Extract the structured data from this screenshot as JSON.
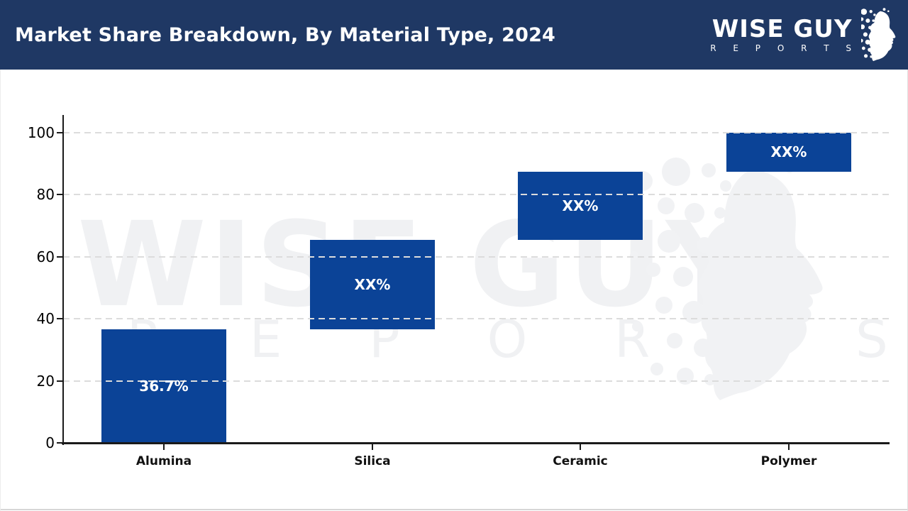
{
  "header": {
    "title": "Market Share Breakdown, By Material Type, 2024",
    "bg_color": "#1f3864",
    "logo": {
      "wordmark": "WISE GUY",
      "subtext": "R E P O R T S"
    }
  },
  "watermark": {
    "line1": "WISE GUY",
    "line2": "R E P O R T S"
  },
  "chart_data": {
    "type": "bar",
    "subtype": "floating-waterfall",
    "title": "Market Share Breakdown, By Material Type, 2024",
    "categories": [
      "Alumina",
      "Silica",
      "Ceramic",
      "Polymer"
    ],
    "series": [
      {
        "name": "Market share (%)",
        "ranges": [
          [
            0,
            36.7
          ],
          [
            36.7,
            65.4
          ],
          [
            65.4,
            87.5
          ],
          [
            87.5,
            100
          ]
        ],
        "labels": [
          "36.7%",
          "XX%",
          "XX%",
          "XX%"
        ]
      }
    ],
    "ylim": [
      0,
      105
    ],
    "yticks": [
      0,
      20,
      40,
      60,
      80,
      100
    ],
    "grid": "horizontal-dashed",
    "legend": "none",
    "bar_color": "#0b4397",
    "bar_label_color": "#ffffff",
    "axis_color": "#1a1a1a",
    "gridline_color": "#dcdcdc"
  }
}
